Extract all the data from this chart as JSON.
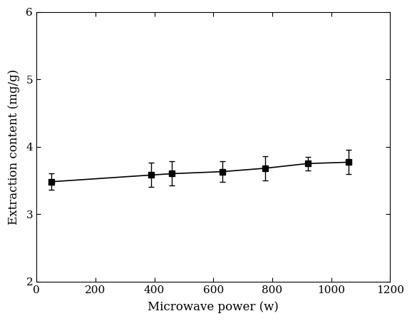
{
  "x": [
    50,
    390,
    460,
    630,
    775,
    920,
    1060
  ],
  "y": [
    3.48,
    3.58,
    3.6,
    3.63,
    3.68,
    3.75,
    3.77
  ],
  "yerr": [
    0.12,
    0.18,
    0.18,
    0.15,
    0.18,
    0.1,
    0.18
  ],
  "xlabel": "Microwave power (w)",
  "ylabel": "Extraction content (mg/g)",
  "xlim": [
    0,
    1200
  ],
  "ylim": [
    2,
    6
  ],
  "xticks": [
    0,
    200,
    400,
    600,
    800,
    1000,
    1200
  ],
  "yticks": [
    2,
    3,
    4,
    5,
    6
  ],
  "line_color": "#000000",
  "marker_color": "#000000",
  "marker": "s",
  "marker_size": 6,
  "line_width": 1.2,
  "capsize": 3,
  "elinewidth": 1.0,
  "background_color": "#ffffff",
  "font_family": "serif",
  "tick_fontsize": 11,
  "label_fontsize": 12
}
